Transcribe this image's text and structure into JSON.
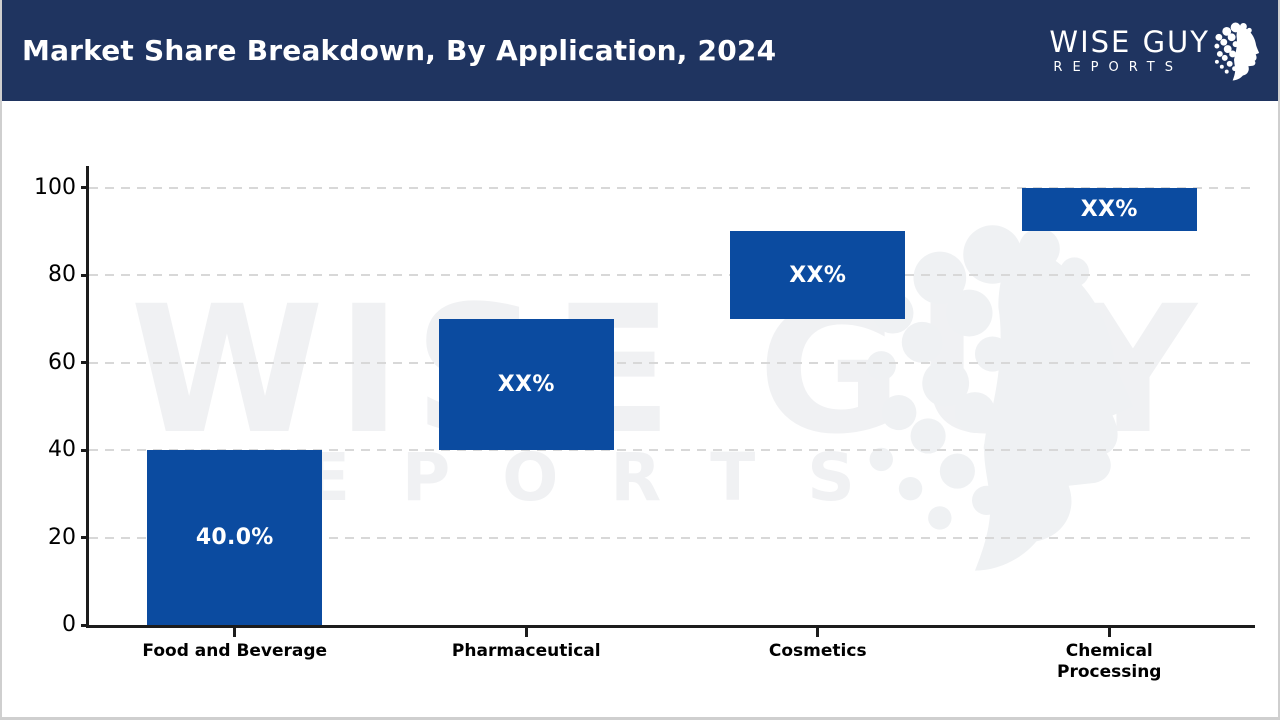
{
  "header": {
    "title": "Market Share Breakdown, By Application, 2024",
    "bg_color": "#1f3460",
    "logo": {
      "line1": "WISE GUY",
      "line2": "REPORTS"
    }
  },
  "watermark": {
    "line1": "WISE GUY",
    "line2": "REPORTS"
  },
  "chart_data": {
    "type": "bar",
    "subtype": "waterfall",
    "title": "Market Share Breakdown, By Application, 2024",
    "categories": [
      "Food and Beverage",
      "Pharmaceutical",
      "Cosmetics",
      "Chemical\nProcessing"
    ],
    "segments": [
      {
        "category": "Food and Beverage",
        "start": 0,
        "end": 40,
        "value": 40,
        "label": "40.0%"
      },
      {
        "category": "Pharmaceutical",
        "start": 40,
        "end": 70,
        "value": 30,
        "label": "XX%"
      },
      {
        "category": "Cosmetics",
        "start": 70,
        "end": 90,
        "value": 20,
        "label": "XX%"
      },
      {
        "category": "Chemical\nProcessing",
        "start": 90,
        "end": 100,
        "value": 10,
        "label": "XX%"
      }
    ],
    "ylim": [
      0,
      105
    ],
    "yticks": [
      0,
      20,
      40,
      60,
      80,
      100
    ],
    "xlabel": "",
    "ylabel": "",
    "grid": {
      "horizontal": true,
      "style": "dashed",
      "color": "#d8d8d8"
    },
    "legend": "none",
    "bar_color": "#0b4ba0",
    "bar_label_color": "#ffffff",
    "axis_color": "#1c1c1c"
  }
}
